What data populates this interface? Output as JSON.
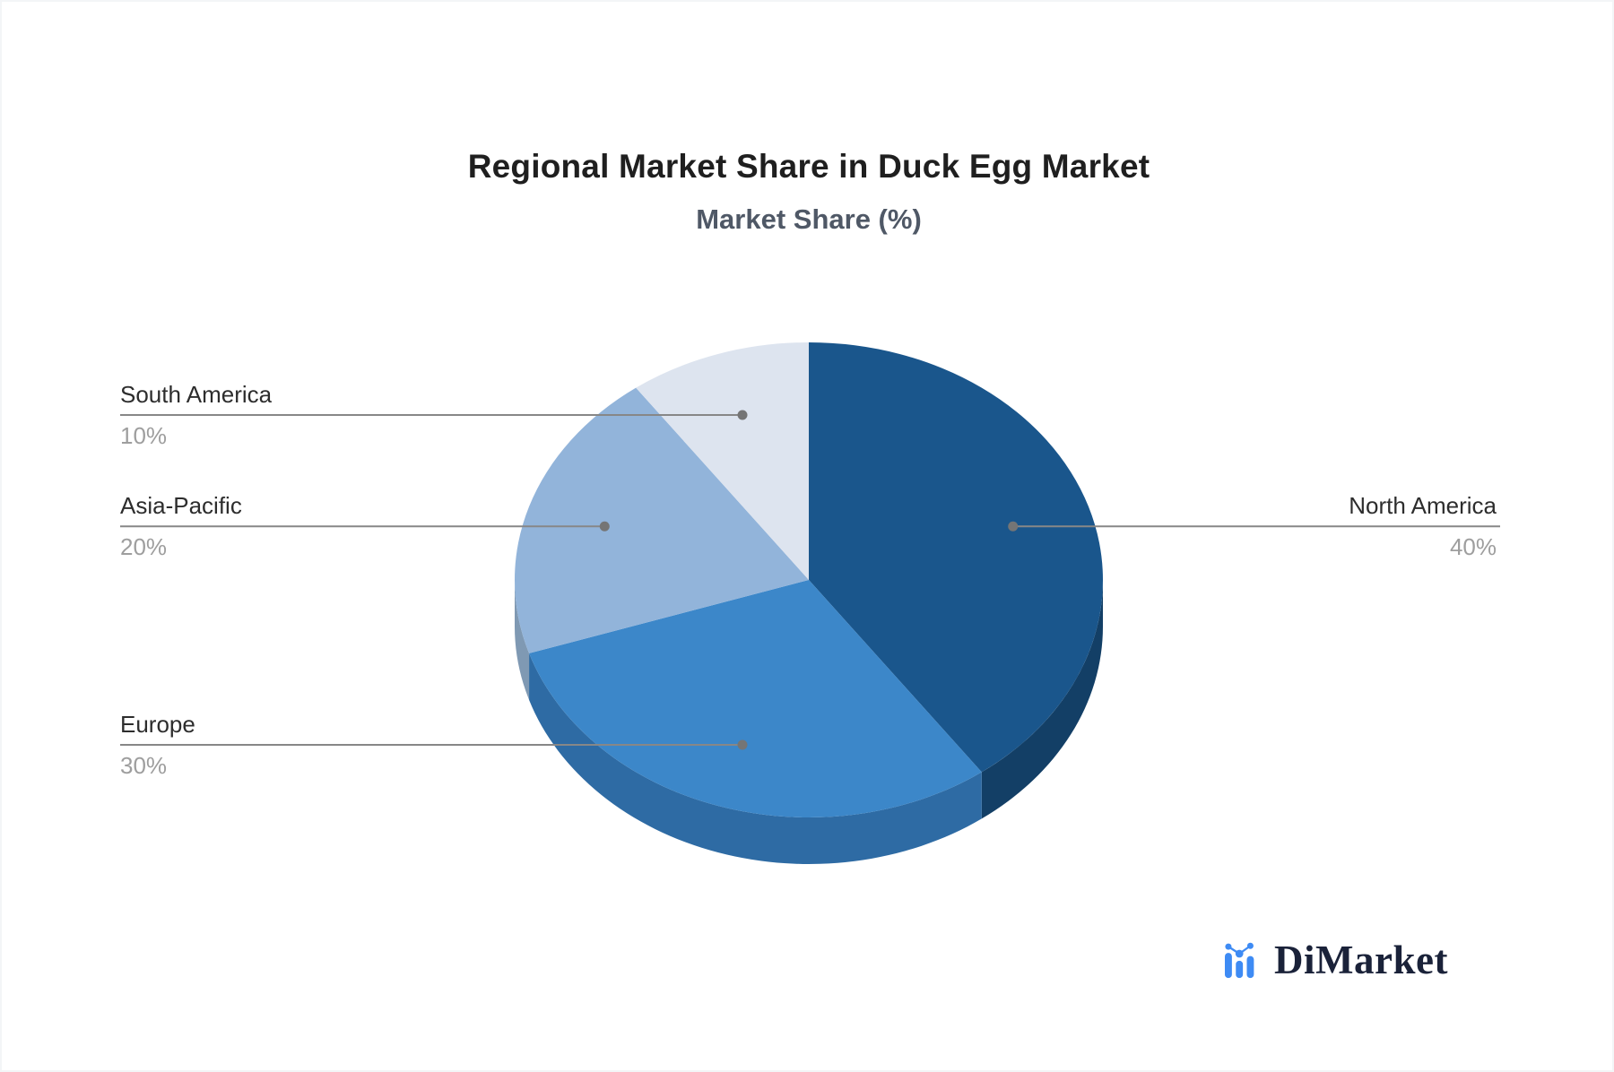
{
  "page": {
    "background": "#ffffff",
    "border_color": "#f3f5f7"
  },
  "chart_data": {
    "type": "pie",
    "style": "3d",
    "title": "Regional Market Share in Duck Egg Market",
    "subtitle": "Market Share (%)",
    "unit": "%",
    "legend_position": "callout-labels",
    "slices": [
      {
        "label": "North America",
        "value": 40,
        "percent_label": "40%",
        "color": "#1a568c",
        "side_color": "#133f66",
        "label_side": "right"
      },
      {
        "label": "Europe",
        "value": 30,
        "percent_label": "30%",
        "color": "#3c87c9",
        "side_color": "#2e6ba4",
        "label_side": "left"
      },
      {
        "label": "Asia-Pacific",
        "value": 20,
        "percent_label": "20%",
        "color": "#92b4da",
        "side_color": "#7f99b3",
        "label_side": "left"
      },
      {
        "label": "South America",
        "value": 10,
        "percent_label": "10%",
        "color": "#dde4ef",
        "side_color": "#c3ccd9",
        "label_side": "left"
      }
    ],
    "title_color": "#1f1f1f",
    "subtitle_color": "#4f5866",
    "label_text_color": "#2d2d2d",
    "percent_text_color": "#9e9e9e",
    "leader_line_color": "#878787",
    "leader_dot_color": "#757575"
  },
  "logo": {
    "text": "DiMarket",
    "text_color": "#1a2239",
    "icon": "bar-line-chart-icon",
    "icon_color": "#3e8bf4"
  }
}
